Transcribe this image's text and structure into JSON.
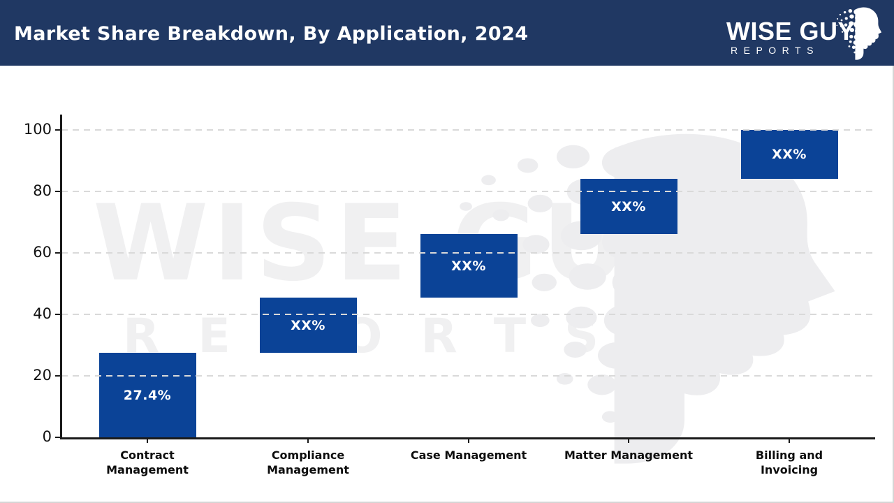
{
  "header": {
    "title": "Market Share Breakdown, By Application, 2024",
    "bg_color": "#203863",
    "logo": {
      "wordmark": "WISE GUY",
      "subtext": "REPORTS"
    }
  },
  "chart_data": {
    "type": "bar",
    "variant": "waterfall",
    "title": "Market Share Breakdown, By Application, 2024",
    "categories": [
      "Contract Management",
      "Compliance Management",
      "Case Management",
      "Matter Management",
      "Billing and Invoicing"
    ],
    "segments": [
      {
        "category": "Contract Management",
        "start": 0,
        "end": 27.4,
        "label": "27.4%"
      },
      {
        "category": "Compliance Management",
        "start": 27.4,
        "end": 45.5,
        "label": "XX%"
      },
      {
        "category": "Case Management",
        "start": 45.5,
        "end": 66.1,
        "label": "XX%"
      },
      {
        "category": "Matter Management",
        "start": 66.1,
        "end": 84.0,
        "label": "XX%"
      },
      {
        "category": "Billing and Invoicing",
        "start": 84.0,
        "end": 100,
        "label": "XX%"
      }
    ],
    "yticks": [
      0,
      20,
      40,
      60,
      80,
      100
    ],
    "ylim": [
      0,
      100
    ],
    "bar_color": "#0B4397",
    "bar_label_color": "#ffffff",
    "grid": {
      "axis": "y",
      "style": "dashed",
      "color": "#d9d9d9"
    },
    "watermark": {
      "wordmark": "WISE GUY",
      "subtext": "REPORTS"
    }
  }
}
